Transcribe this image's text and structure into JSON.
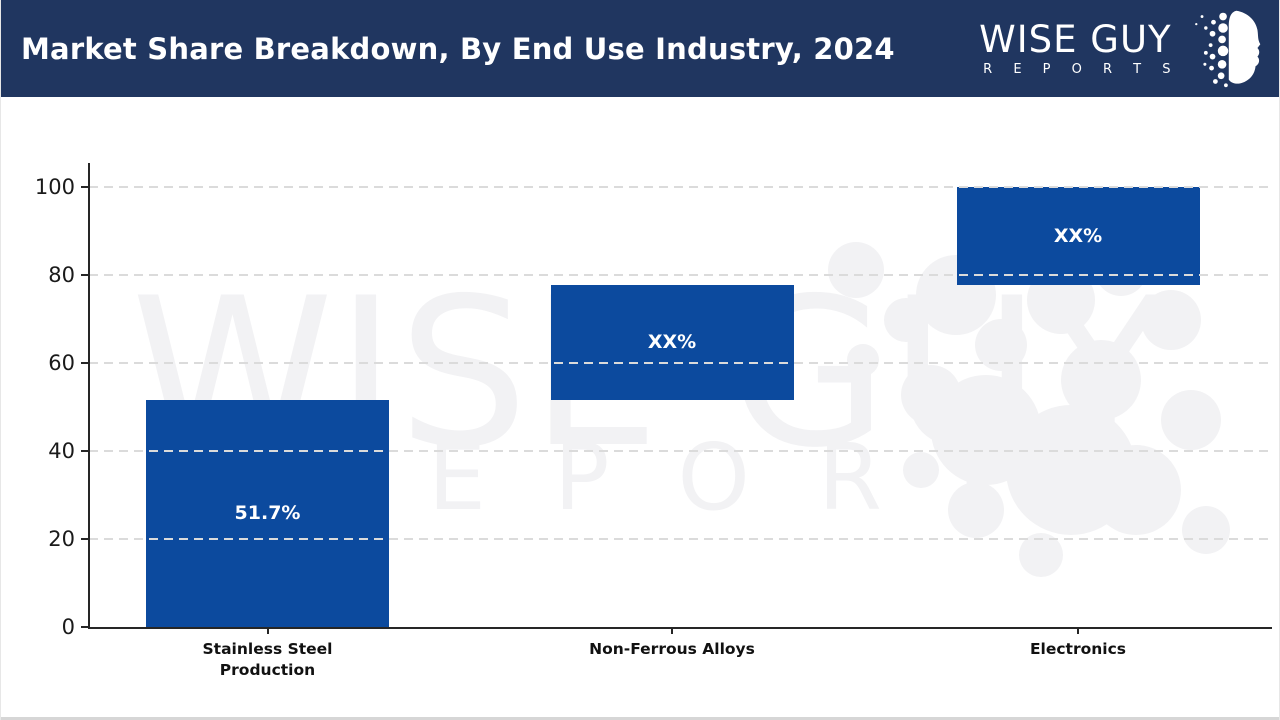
{
  "header": {
    "title": "Market Share Breakdown, By End Use Industry, 2024",
    "logo": {
      "line1": "WISE GUY",
      "line2": "R E P O R T S"
    },
    "background": "#203660"
  },
  "watermark": {
    "line1": "WISE GUY",
    "line2": "REPORTS",
    "color": "#f2f2f4"
  },
  "chart_data": {
    "type": "bar",
    "subtype": "waterfall-floating-segments",
    "title": "Market Share Breakdown, By End Use Industry, 2024",
    "categories": [
      "Stainless Steel Production",
      "Non-Ferrous Alloys",
      "Electronics"
    ],
    "bars": [
      {
        "category": "Stainless Steel Production",
        "start": 0,
        "end": 51.7,
        "value": 51.7,
        "label": "51.7%"
      },
      {
        "category": "Non-Ferrous Alloys",
        "start": 51.7,
        "end": 77.8,
        "value": 26.1,
        "label": "XX%"
      },
      {
        "category": "Electronics",
        "start": 77.8,
        "end": 100,
        "value": 22.2,
        "label": "XX%"
      }
    ],
    "xlabel": "",
    "ylabel": "",
    "y_ticks": [
      0,
      20,
      40,
      60,
      80,
      100
    ],
    "ylim": [
      0,
      105
    ],
    "grid": "horizontal dashed, drawn above bars",
    "legend": "none",
    "bar_color": "#0c4a9e",
    "label_color": "#ffffff",
    "grid_color": "#dbdbdb",
    "axis_color": "#262626",
    "tick_label_color": "#1a1a1a"
  }
}
